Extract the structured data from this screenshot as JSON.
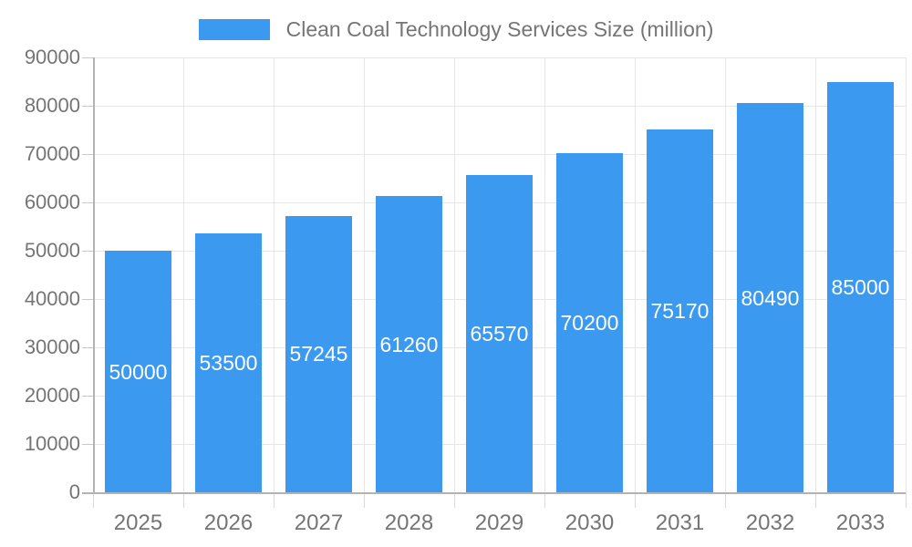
{
  "chart_data": {
    "type": "bar",
    "title": "Clean Coal Technology Services Size (million)",
    "categories": [
      "2025",
      "2026",
      "2027",
      "2028",
      "2029",
      "2030",
      "2031",
      "2032",
      "2033"
    ],
    "values": [
      50000,
      53500,
      57245,
      61260,
      65570,
      70200,
      75170,
      80490,
      85000
    ],
    "xlabel": "",
    "ylabel": "",
    "ylim": [
      0,
      90000
    ],
    "y_ticks": [
      0,
      10000,
      20000,
      30000,
      40000,
      50000,
      60000,
      70000,
      80000,
      90000
    ],
    "grid": true,
    "legend_position": "top",
    "bar_label_position": "center",
    "colors": {
      "bar": "#3b99f0",
      "bar_label_text": "#ffffff",
      "axis_text": "#757575",
      "axis_line": "#b3b3b3",
      "gridline": "#e6e6e6",
      "tick": "#c9c9c9",
      "background": "#ffffff"
    }
  }
}
